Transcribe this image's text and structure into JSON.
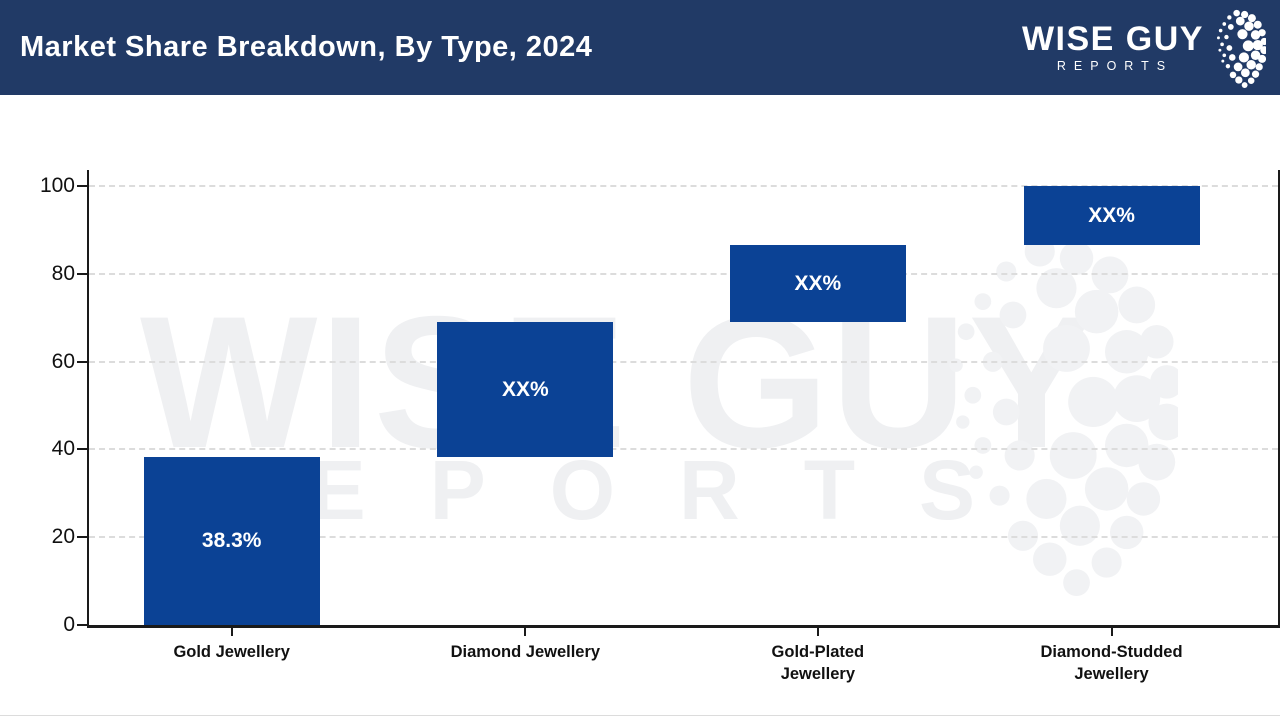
{
  "header": {
    "title": "Market Share Breakdown, By Type, 2024",
    "logo": {
      "line1": "WISE GUY",
      "line2": "REPORTS"
    }
  },
  "watermark": {
    "line1": "WISE GUY",
    "line2": "REPORTS"
  },
  "chart_data": {
    "type": "bar",
    "subtype": "waterfall-floating-bars",
    "title": "Market Share Breakdown, By Type, 2024",
    "categories": [
      "Gold Jewellery",
      "Diamond Jewellery",
      "Gold-Plated\nJewellery",
      "Diamond-Studded\nJewellery"
    ],
    "segments": [
      {
        "start": 0,
        "end": 38.3,
        "label": "38.3%"
      },
      {
        "start": 38.3,
        "end": 69,
        "label": "XX%"
      },
      {
        "start": 69,
        "end": 86.5,
        "label": "XX%"
      },
      {
        "start": 86.5,
        "end": 100,
        "label": "XX%"
      }
    ],
    "values_pct": [
      38.3,
      30.7,
      17.5,
      13.5
    ],
    "xlabel": "",
    "ylabel": "",
    "ylim": [
      0,
      100
    ],
    "yticks": [
      0,
      20,
      40,
      60,
      80,
      100
    ],
    "grid": "horizontal-dashed",
    "legend": "none",
    "colors": {
      "bar": "#0b4295",
      "bar_label": "#ffffff",
      "header_bg": "#213a66",
      "grid": "#dcdcdc",
      "axis": "#1a1a1a",
      "watermark": "#eff0f2"
    }
  }
}
